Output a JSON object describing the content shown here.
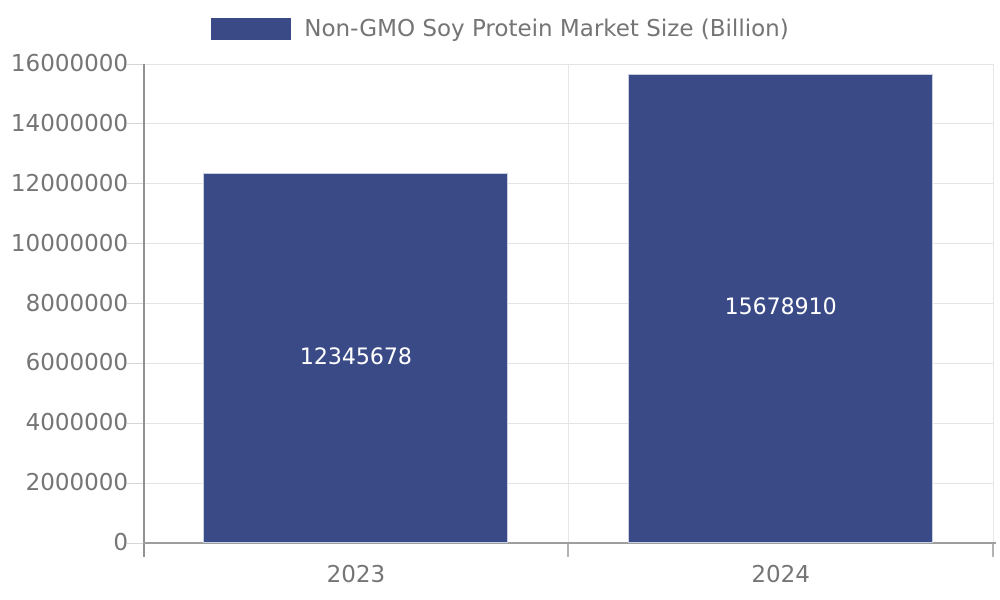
{
  "legend": {
    "label": "Non-GMO Soy Protein Market Size (Billion)"
  },
  "chart_data": {
    "type": "bar",
    "title": "Non-GMO Soy Protein Market Size (Billion)",
    "categories": [
      "2023",
      "2024"
    ],
    "values": [
      12345678,
      15678910
    ],
    "bar_labels": [
      "12345678",
      "15678910"
    ],
    "yticks": [
      0,
      2000000,
      4000000,
      6000000,
      8000000,
      10000000,
      12000000,
      14000000,
      16000000
    ],
    "ytick_labels": [
      "0",
      "2000000",
      "4000000",
      "6000000",
      "8000000",
      "10000000",
      "12000000",
      "14000000",
      "16000000"
    ],
    "ylim": [
      0,
      16000000
    ],
    "xlabel": "",
    "ylabel": "",
    "grid": true,
    "legend_position": "top-center",
    "bar_label_position": "inside-center",
    "colors": {
      "bar_fill": "#3a4a86",
      "bar_edge": "#c9cfe2",
      "bar_label_text": "#ffffff",
      "axis_text": "#757575",
      "grid_line": "#e4e4e4",
      "axis_line": "#9a9a9a"
    }
  }
}
